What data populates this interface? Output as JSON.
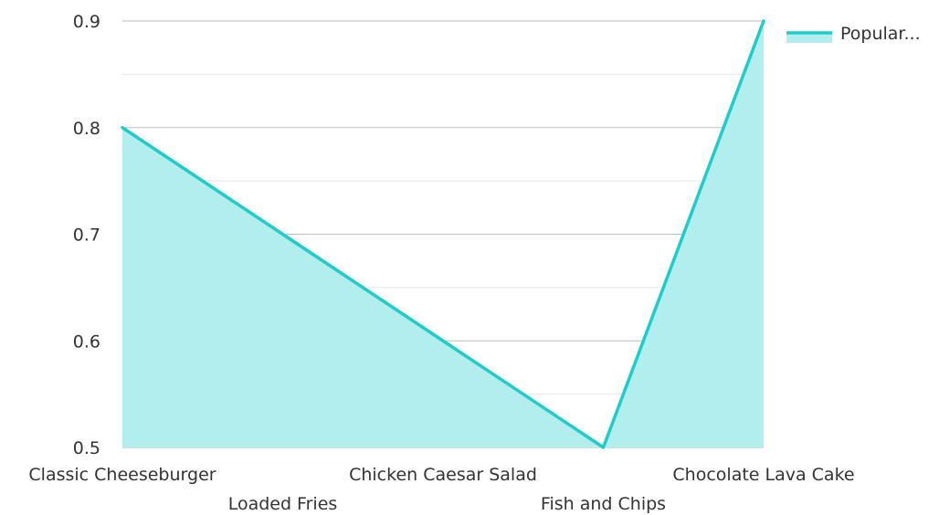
{
  "chart_data": {
    "type": "area",
    "categories": [
      "Classic Cheeseburger",
      "Loaded Fries",
      "Chicken Caesar Salad",
      "Fish and Chips",
      "Chocolate Lava Cake"
    ],
    "series": [
      {
        "name": "Popular...",
        "values": [
          0.8,
          0.7,
          0.6,
          0.5,
          0.9
        ]
      }
    ],
    "title": "",
    "xlabel": "",
    "ylabel": "",
    "ylim": [
      0.5,
      0.9
    ],
    "yticks": [
      "0.5",
      "0.6",
      "0.7",
      "0.8",
      "0.9"
    ],
    "grid": true,
    "legend": "top-right",
    "colors": {
      "line": "#1fcccc",
      "fill": "#b2eeee",
      "grid_major": "#bdbdbd",
      "grid_minor": "#e6e6e6"
    }
  }
}
